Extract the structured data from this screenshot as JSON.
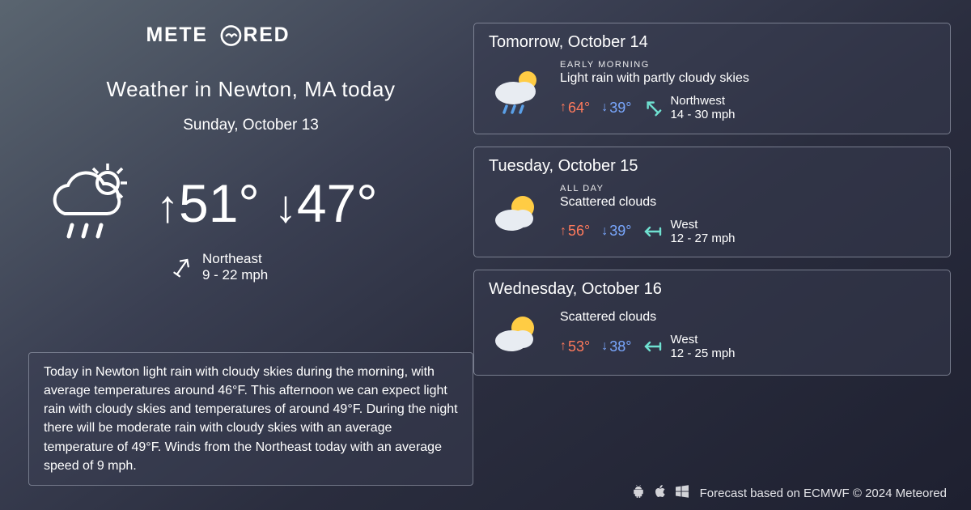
{
  "brand": "METEORED",
  "heading": "Weather in Newton, MA today",
  "date": "Sunday, October 13",
  "current": {
    "high": "51°",
    "low": "47°",
    "wind_direction": "Northeast",
    "wind_speed": "9 - 22 mph",
    "wind_arrow_rotation": 215,
    "icon": "rain-cloud-sun"
  },
  "summary": "Today in Newton light rain with cloudy skies during the morning, with average temperatures around 46°F. This afternoon we can expect light rain with cloudy skies and temperatures of around 49°F. During the night there will be moderate rain with cloudy skies with an average temperature of 49°F. Winds from the Northeast today with an average speed of 9 mph.",
  "forecast": [
    {
      "date": "Tomorrow, October 14",
      "period": "EARLY MORNING",
      "condition": "Light rain with partly cloudy skies",
      "high": "64°",
      "low": "39°",
      "wind_direction": "Northwest",
      "wind_speed": "14 - 30 mph",
      "wind_arrow_rotation": 135,
      "icon": "rain-partly"
    },
    {
      "date": "Tuesday, October 15",
      "period": "ALL DAY",
      "condition": "Scattered clouds",
      "high": "56°",
      "low": "39°",
      "wind_direction": "West",
      "wind_speed": "12 - 27 mph",
      "wind_arrow_rotation": 90,
      "icon": "partly-cloudy"
    },
    {
      "date": "Wednesday, October 16",
      "period": "",
      "condition": "Scattered clouds",
      "high": "53°",
      "low": "38°",
      "wind_direction": "West",
      "wind_speed": "12 - 25 mph",
      "wind_arrow_rotation": 90,
      "icon": "partly-cloudy"
    }
  ],
  "footer": "Forecast based on ECMWF © 2024 Meteored",
  "colors": {
    "high": "#ff7a5c",
    "low": "#7aa8ff",
    "wind_icon": "#6fe0d0",
    "text": "#ffffff",
    "card_bg": "rgba(55,60,80,0.5)",
    "card_border": "rgba(180,185,200,0.55)"
  }
}
